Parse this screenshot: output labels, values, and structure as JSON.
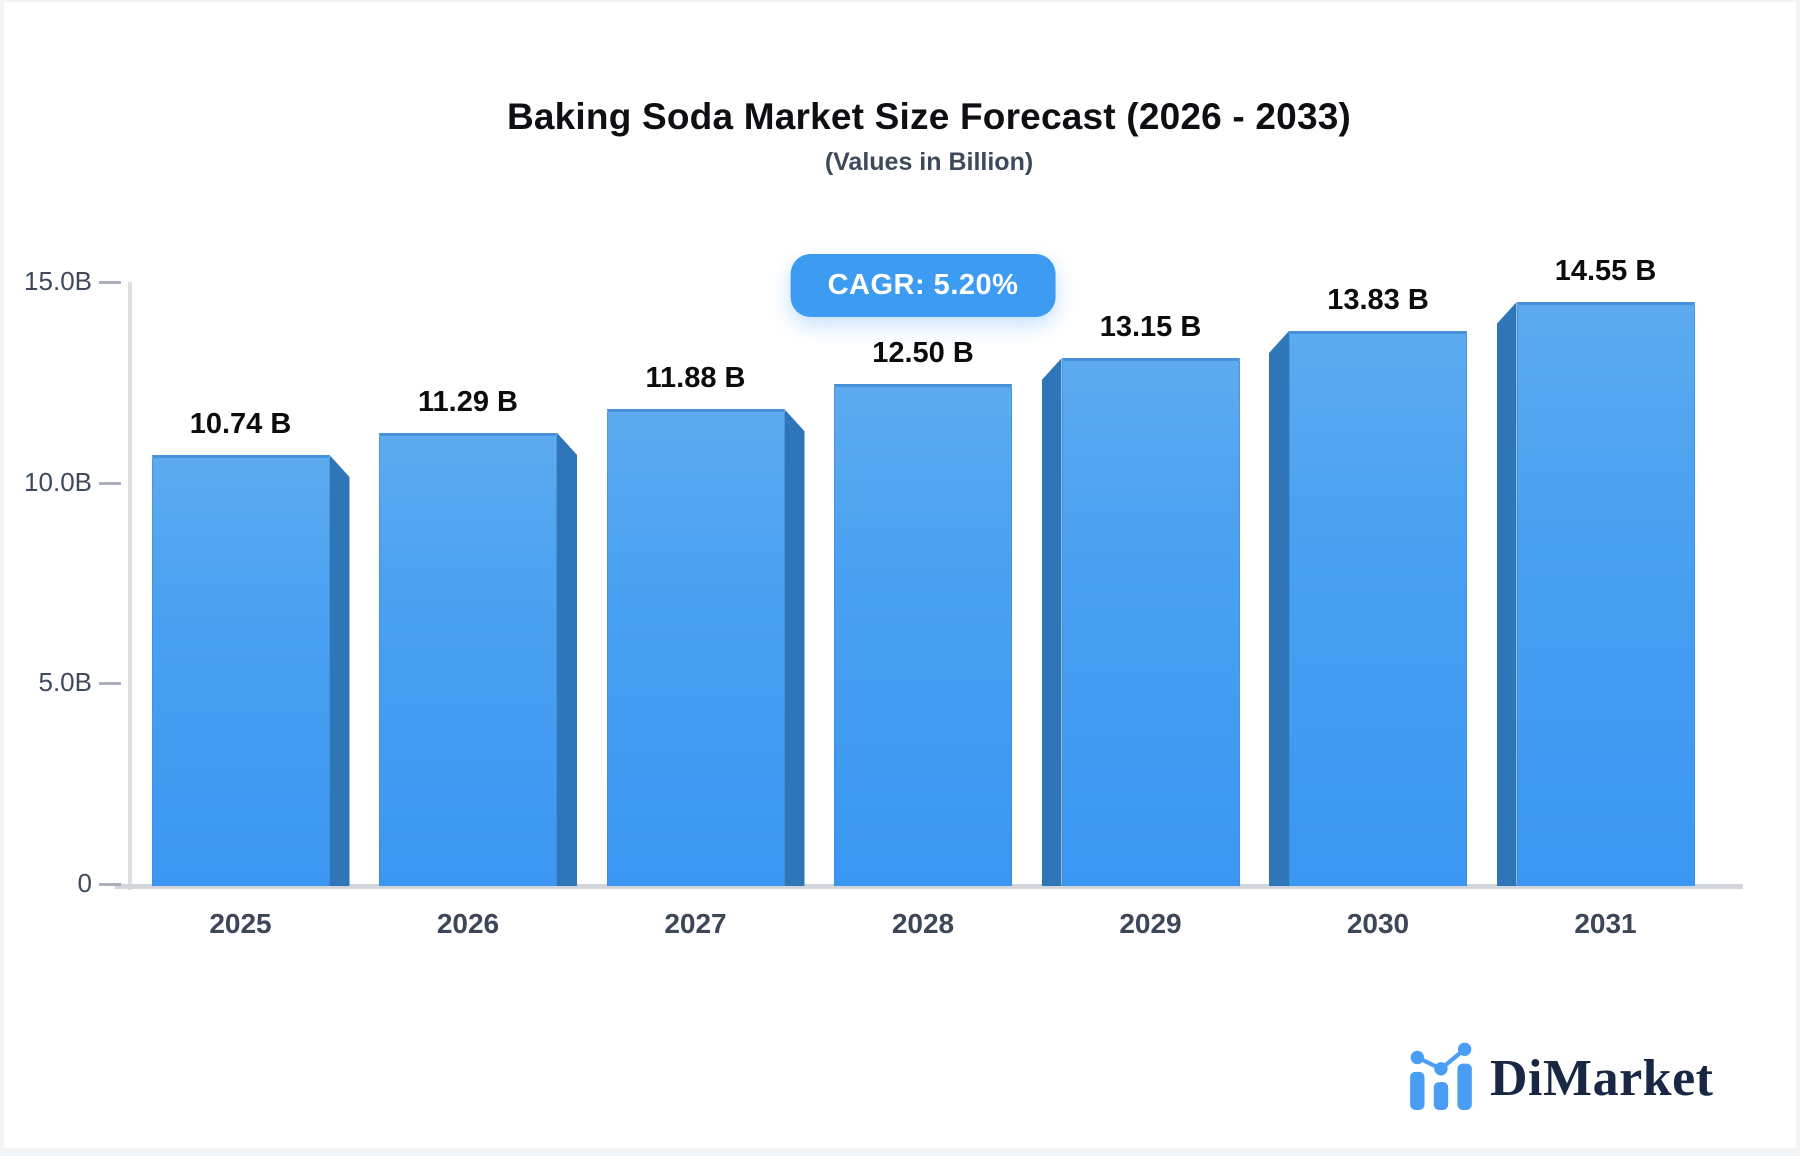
{
  "header": {
    "title": "Baking Soda Market Size Forecast (2026 - 2033)",
    "subtitle": "(Values in Billion)"
  },
  "badge": {
    "label": "CAGR: 5.20%",
    "color": "#3d9cf2"
  },
  "brand": {
    "name": "DiMarket",
    "icon": "bar-chart-logo-icon",
    "icon_color": "#4a9df5",
    "text_color": "#182844"
  },
  "colors": {
    "bar_top": "#5cabf0",
    "bar_bottom": "#3b97f2",
    "bar_side_face": "#2e76b8",
    "axis_line": "#dcdfe4",
    "baseline": "#d2d6db",
    "tick": "#a9b0bb",
    "label_text": "#3e4a5b"
  },
  "chart_data": {
    "type": "bar",
    "title": "Baking Soda Market Size Forecast (2026 - 2033)",
    "subtitle": "(Values in Billion)",
    "categories": [
      "2025",
      "2026",
      "2027",
      "2028",
      "2029",
      "2030",
      "2031"
    ],
    "values": [
      10.74,
      11.29,
      11.88,
      12.5,
      13.15,
      13.83,
      14.55
    ],
    "bar_labels": [
      "10.74 B",
      "11.29 B",
      "11.88 B",
      "12.50 B",
      "13.15 B",
      "13.83 B",
      "14.55 B"
    ],
    "xlabel": "",
    "ylabel": "",
    "ylim": [
      0,
      15
    ],
    "ytick_values": [
      0,
      5,
      10,
      15
    ],
    "ytick_labels": [
      "0",
      "5.0B",
      "10.0B",
      "15.0B"
    ],
    "grid": false,
    "legend": false,
    "annotation": "CAGR: 5.20%",
    "style": "pseudo-3d bars, perspective from center: left bars show right dark face, right bars show left dark face"
  }
}
